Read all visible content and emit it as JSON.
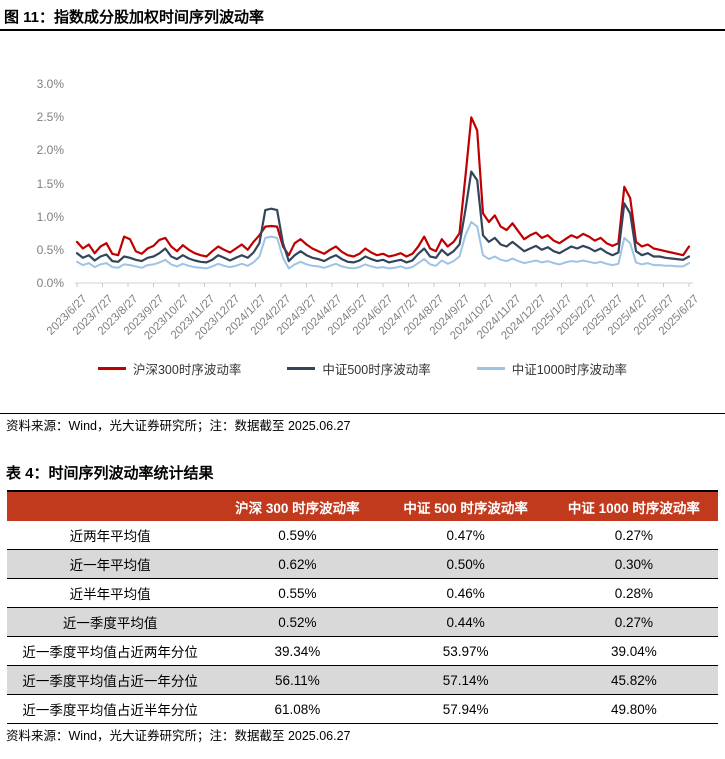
{
  "figure": {
    "title": "图 11：指数成分股加权时间序列波动率",
    "source_note": "资料来源：Wind，光大证券研究所；注：数据截至 2025.06.27"
  },
  "chart_data": {
    "type": "line",
    "title": "指数成分股加权时间序列波动率",
    "xlabel": "",
    "ylabel": "",
    "ylim": [
      0,
      3.0
    ],
    "grid": false,
    "legend_position": "bottom",
    "y_ticks": [
      "0.0%",
      "0.5%",
      "1.0%",
      "1.5%",
      "2.0%",
      "2.5%",
      "3.0%"
    ],
    "x_tick_labels": [
      "2023/6/27",
      "2023/7/27",
      "2023/8/27",
      "2023/9/27",
      "2023/10/27",
      "2023/11/27",
      "2023/12/27",
      "2024/1/27",
      "2024/2/27",
      "2024/3/27",
      "2024/4/27",
      "2024/5/27",
      "2024/6/27",
      "2024/7/27",
      "2024/8/27",
      "2024/9/27",
      "2024/10/27",
      "2024/11/27",
      "2024/12/27",
      "2025/1/27",
      "2025/2/27",
      "2025/3/27",
      "2025/4/27",
      "2025/5/27",
      "2025/6/27"
    ],
    "sampling_note": "values in % at approximately weekly intervals from 2023/6/27 to 2025/6/27",
    "series": [
      {
        "name": "沪深300时序波动率",
        "color": "#C00000",
        "values": [
          0.62,
          0.52,
          0.58,
          0.45,
          0.55,
          0.6,
          0.44,
          0.42,
          0.7,
          0.66,
          0.48,
          0.44,
          0.52,
          0.56,
          0.65,
          0.68,
          0.55,
          0.48,
          0.57,
          0.5,
          0.45,
          0.42,
          0.4,
          0.48,
          0.55,
          0.5,
          0.46,
          0.52,
          0.58,
          0.5,
          0.62,
          0.72,
          0.85,
          0.86,
          0.85,
          0.55,
          0.42,
          0.6,
          0.66,
          0.58,
          0.52,
          0.48,
          0.44,
          0.5,
          0.55,
          0.47,
          0.42,
          0.4,
          0.44,
          0.52,
          0.46,
          0.42,
          0.44,
          0.4,
          0.42,
          0.45,
          0.4,
          0.44,
          0.55,
          0.7,
          0.52,
          0.48,
          0.66,
          0.55,
          0.62,
          0.75,
          1.6,
          2.5,
          2.3,
          1.05,
          0.92,
          1.02,
          0.85,
          0.8,
          0.9,
          0.78,
          0.66,
          0.72,
          0.76,
          0.68,
          0.72,
          0.64,
          0.6,
          0.66,
          0.72,
          0.68,
          0.74,
          0.7,
          0.64,
          0.68,
          0.6,
          0.56,
          0.6,
          1.45,
          1.28,
          0.62,
          0.55,
          0.58,
          0.52,
          0.5,
          0.48,
          0.46,
          0.44,
          0.42,
          0.55
        ]
      },
      {
        "name": "中证500时序波动率",
        "color": "#32455B",
        "values": [
          0.45,
          0.38,
          0.42,
          0.34,
          0.4,
          0.43,
          0.33,
          0.32,
          0.4,
          0.38,
          0.35,
          0.33,
          0.38,
          0.4,
          0.45,
          0.52,
          0.4,
          0.36,
          0.42,
          0.37,
          0.34,
          0.32,
          0.31,
          0.35,
          0.42,
          0.38,
          0.34,
          0.38,
          0.42,
          0.38,
          0.46,
          0.6,
          1.1,
          1.12,
          1.1,
          0.6,
          0.33,
          0.42,
          0.48,
          0.42,
          0.38,
          0.36,
          0.33,
          0.38,
          0.42,
          0.36,
          0.32,
          0.31,
          0.34,
          0.4,
          0.36,
          0.33,
          0.35,
          0.31,
          0.33,
          0.35,
          0.31,
          0.34,
          0.44,
          0.52,
          0.4,
          0.38,
          0.5,
          0.42,
          0.48,
          0.58,
          1.1,
          1.68,
          1.55,
          0.72,
          0.62,
          0.68,
          0.58,
          0.55,
          0.62,
          0.55,
          0.48,
          0.52,
          0.56,
          0.5,
          0.54,
          0.48,
          0.45,
          0.5,
          0.55,
          0.52,
          0.56,
          0.53,
          0.48,
          0.52,
          0.46,
          0.42,
          0.46,
          1.2,
          1.05,
          0.48,
          0.42,
          0.45,
          0.4,
          0.4,
          0.38,
          0.37,
          0.36,
          0.35,
          0.4
        ]
      },
      {
        "name": "中证1000时序波动率",
        "color": "#9DC3E6",
        "values": [
          0.32,
          0.27,
          0.3,
          0.24,
          0.28,
          0.3,
          0.24,
          0.23,
          0.28,
          0.27,
          0.25,
          0.23,
          0.27,
          0.28,
          0.31,
          0.35,
          0.28,
          0.25,
          0.29,
          0.26,
          0.24,
          0.23,
          0.22,
          0.25,
          0.29,
          0.26,
          0.24,
          0.26,
          0.29,
          0.26,
          0.31,
          0.4,
          0.68,
          0.7,
          0.68,
          0.38,
          0.22,
          0.28,
          0.32,
          0.28,
          0.26,
          0.25,
          0.23,
          0.26,
          0.29,
          0.25,
          0.23,
          0.22,
          0.24,
          0.28,
          0.25,
          0.23,
          0.24,
          0.22,
          0.23,
          0.25,
          0.22,
          0.24,
          0.3,
          0.36,
          0.28,
          0.26,
          0.34,
          0.29,
          0.33,
          0.4,
          0.72,
          0.92,
          0.85,
          0.42,
          0.36,
          0.4,
          0.35,
          0.33,
          0.37,
          0.33,
          0.3,
          0.32,
          0.34,
          0.31,
          0.33,
          0.3,
          0.28,
          0.31,
          0.33,
          0.32,
          0.34,
          0.32,
          0.3,
          0.32,
          0.29,
          0.27,
          0.29,
          0.68,
          0.6,
          0.31,
          0.28,
          0.3,
          0.27,
          0.27,
          0.26,
          0.26,
          0.25,
          0.25,
          0.3
        ]
      }
    ]
  },
  "table": {
    "title": "表 4：时间序列波动率统计结果",
    "header_bg": "#C23A1D",
    "stripe_bg": "#D9D9D9",
    "header": [
      "",
      "沪深 300 时序波动率",
      "中证 500 时序波动率",
      "中证 1000 时序波动率"
    ],
    "rows": [
      {
        "label": "近两年平均值",
        "values": [
          "0.59%",
          "0.47%",
          "0.27%"
        ]
      },
      {
        "label": "近一年平均值",
        "values": [
          "0.62%",
          "0.50%",
          "0.30%"
        ]
      },
      {
        "label": "近半年平均值",
        "values": [
          "0.55%",
          "0.46%",
          "0.28%"
        ]
      },
      {
        "label": "近一季度平均值",
        "values": [
          "0.52%",
          "0.44%",
          "0.27%"
        ]
      },
      {
        "label": "近一季度平均值占近两年分位",
        "values": [
          "39.34%",
          "53.97%",
          "39.04%"
        ]
      },
      {
        "label": "近一季度平均值占近一年分位",
        "values": [
          "56.11%",
          "57.14%",
          "45.82%"
        ]
      },
      {
        "label": "近一季度平均值占近半年分位",
        "values": [
          "61.08%",
          "57.94%",
          "49.80%"
        ]
      }
    ],
    "source_note": "资料来源：Wind，光大证券研究所；注：数据截至 2025.06.27"
  }
}
